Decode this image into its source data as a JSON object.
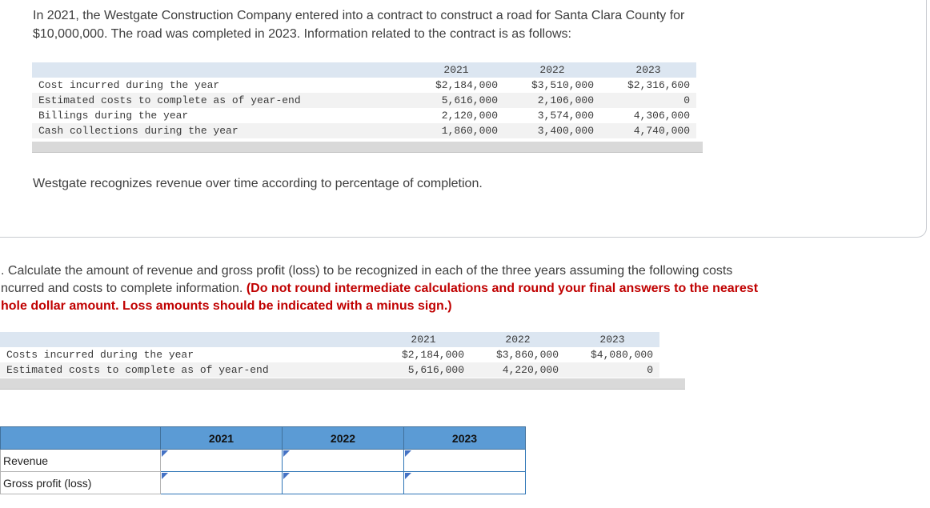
{
  "intro": {
    "line1": "In 2021, the Westgate Construction Company entered into a contract to construct a road for Santa Clara County for",
    "line2": "$10,000,000. The road was completed in 2023. Information related to the contract is as follows:"
  },
  "contract_table": {
    "years": [
      "2021",
      "2022",
      "2023"
    ],
    "rows": [
      {
        "label": "Cost incurred during the year",
        "values": [
          "$2,184,000",
          "$3,510,000",
          "$2,316,600"
        ]
      },
      {
        "label": "Estimated costs to complete as of year-end",
        "values": [
          "5,616,000",
          "2,106,000",
          "0"
        ]
      },
      {
        "label": "Billings during the year",
        "values": [
          "2,120,000",
          "3,574,000",
          "4,306,000"
        ]
      },
      {
        "label": "Cash collections during the year",
        "values": [
          "1,860,000",
          "3,400,000",
          "4,740,000"
        ]
      }
    ]
  },
  "note": "Westgate recognizes revenue over time according to percentage of completion.",
  "question": {
    "line1": ". Calculate the amount of revenue and gross profit (loss) to be recognized in each of the three years assuming the following costs",
    "line2_normal": "ncurred and costs to complete information. ",
    "line2_red": "(Do not round intermediate calculations and round your final answers to the nearest",
    "line3_red": "hole dollar amount. Loss amounts should be indicated with a minus sign.)"
  },
  "costs_table": {
    "years": [
      "2021",
      "2022",
      "2023"
    ],
    "rows": [
      {
        "label": "Costs incurred during the year",
        "values": [
          "$2,184,000",
          "$3,860,000",
          "$4,080,000"
        ]
      },
      {
        "label": "Estimated costs to complete as of year-end",
        "values": [
          "5,616,000",
          "4,220,000",
          "0"
        ]
      }
    ]
  },
  "answer_table": {
    "years": [
      "2021",
      "2022",
      "2023"
    ],
    "row_labels": [
      "Revenue",
      "Gross profit (loss)"
    ]
  },
  "colors": {
    "data_table_header_bg": "#dce6f1",
    "data_table_stripe": "#f2f2f2",
    "answer_header_bg": "#5b9bd5",
    "answer_cell_border": "#2e75b6",
    "cell_marker": "#4472c4",
    "emphasis_red": "#c00000"
  }
}
